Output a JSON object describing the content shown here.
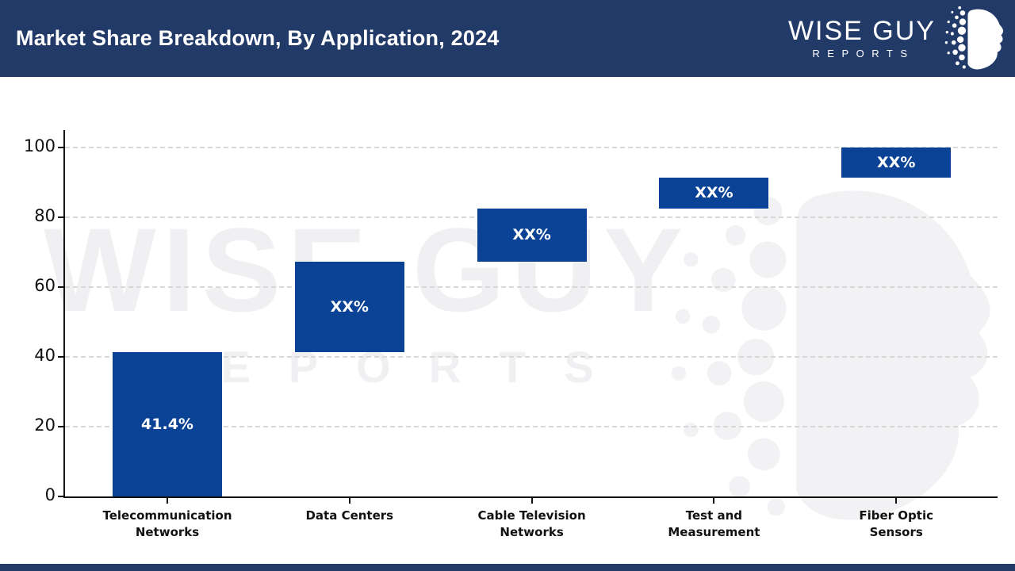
{
  "header": {
    "title": "Market Share Breakdown, By Application, 2024",
    "logo": {
      "wordmark": "WISE GUY",
      "subtext": "REPORTS"
    }
  },
  "watermark": {
    "wordmark": "WISE GUY",
    "subtext": "REPORTS"
  },
  "chart_data": {
    "type": "bar",
    "subtype": "waterfall",
    "title": "Market Share Breakdown, By Application, 2024",
    "xlabel": "",
    "ylabel": "",
    "ylim": [
      0,
      105
    ],
    "yticks": [
      0,
      20,
      40,
      60,
      80,
      100
    ],
    "grid": "horizontal-dashed",
    "legend": "none",
    "categories": [
      "Telecommunication Networks",
      "Data Centers",
      "Cable Television Networks",
      "Test and Measurement",
      "Fiber Optic Sensors"
    ],
    "category_label_lines": [
      [
        "Telecommunication",
        "Networks"
      ],
      [
        "Data Centers"
      ],
      [
        "Cable Television",
        "Networks"
      ],
      [
        "Test and",
        "Measurement"
      ],
      [
        "Fiber Optic",
        "Sensors"
      ]
    ],
    "bars": [
      {
        "category": "Telecommunication Networks",
        "start": 0,
        "end": 41.4,
        "label": "41.4%"
      },
      {
        "category": "Data Centers",
        "start": 41.4,
        "end": 67.3,
        "label": "XX%"
      },
      {
        "category": "Cable Television Networks",
        "start": 67.3,
        "end": 82.5,
        "label": "XX%"
      },
      {
        "category": "Test and Measurement",
        "start": 82.5,
        "end": 91.4,
        "label": "XX%"
      },
      {
        "category": "Fiber Optic Sensors",
        "start": 91.4,
        "end": 100,
        "label": "XX%"
      }
    ]
  },
  "colors": {
    "header_bg": "#223a68",
    "footer_bg": "#223a68",
    "bar": "#0a4396",
    "bar_label": "#ffffff",
    "grid": "#d8d8d8",
    "axis": "#111111",
    "watermark": "#f0f0f3",
    "title_text": "#ffffff"
  }
}
